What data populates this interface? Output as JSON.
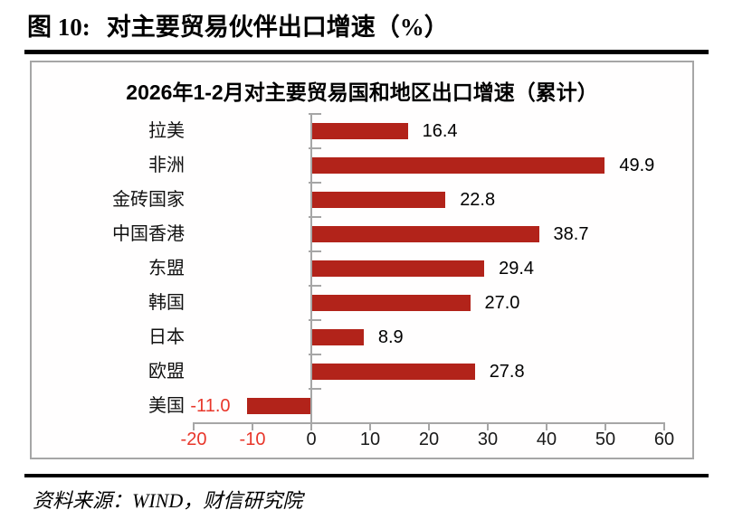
{
  "page": {
    "figure_label": "图 10:",
    "figure_title": "对主要贸易伙伴出口增速（%）",
    "source": "资料来源：WIND，财信研究院"
  },
  "chart_data": {
    "type": "bar",
    "orientation": "horizontal",
    "title": "2026年1-2月对主要贸易国和地区出口增速（累计）",
    "categories": [
      "拉美",
      "非洲",
      "金砖国家",
      "中国香港",
      "东盟",
      "韩国",
      "日本",
      "欧盟",
      "美国"
    ],
    "values": [
      16.4,
      49.9,
      22.8,
      38.7,
      29.4,
      27.0,
      8.9,
      27.8,
      -11.0
    ],
    "value_labels": [
      "16.4",
      "49.9",
      "22.8",
      "38.7",
      "29.4",
      "27.0",
      "8.9",
      "27.8",
      "-11.0"
    ],
    "xlabel": "",
    "ylabel": "",
    "xlim": [
      -20,
      60
    ],
    "x_ticks": [
      -20,
      -10,
      0,
      10,
      20,
      30,
      40,
      50,
      60
    ],
    "grid": false,
    "legend": "none",
    "bar_color": "#B2231A",
    "negative_text_color": "#E8362A",
    "axis_color": "#A6A6A6"
  }
}
